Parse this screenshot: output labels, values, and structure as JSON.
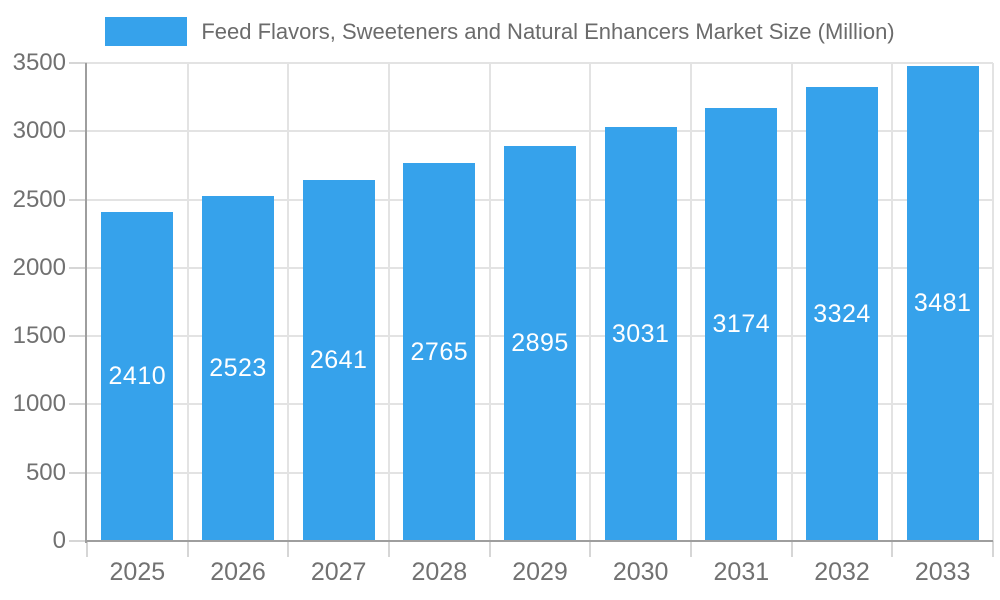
{
  "chart_data": {
    "type": "bar",
    "title": "Feed Flavors, Sweeteners and Natural Enhancers Market Size (Million)",
    "categories": [
      "2025",
      "2026",
      "2027",
      "2028",
      "2029",
      "2030",
      "2031",
      "2032",
      "2033"
    ],
    "values": [
      2410,
      2523,
      2641,
      2765,
      2895,
      3031,
      3174,
      3324,
      3481
    ],
    "series_name": "Feed Flavors, Sweeteners and Natural Enhancers Market Size (Million)",
    "xlabel": "",
    "ylabel": "",
    "ylim": [
      0,
      3500
    ],
    "ytick_step": 500,
    "ytick_labels": [
      "0",
      "500",
      "1000",
      "1500",
      "2000",
      "2500",
      "3000",
      "3500"
    ],
    "grid": "on",
    "legend_position": "top",
    "bar_labels_position": "center-inside"
  },
  "colors": {
    "bar": "#36A2EB",
    "bar_label": "#ffffff",
    "grid": "#e3e3e3",
    "tick_mark": "#d6d6d6",
    "axis_line": "#9e9e9e",
    "tick_text": "#717171",
    "title_text": "#6b6b6b",
    "background": "#ffffff"
  }
}
